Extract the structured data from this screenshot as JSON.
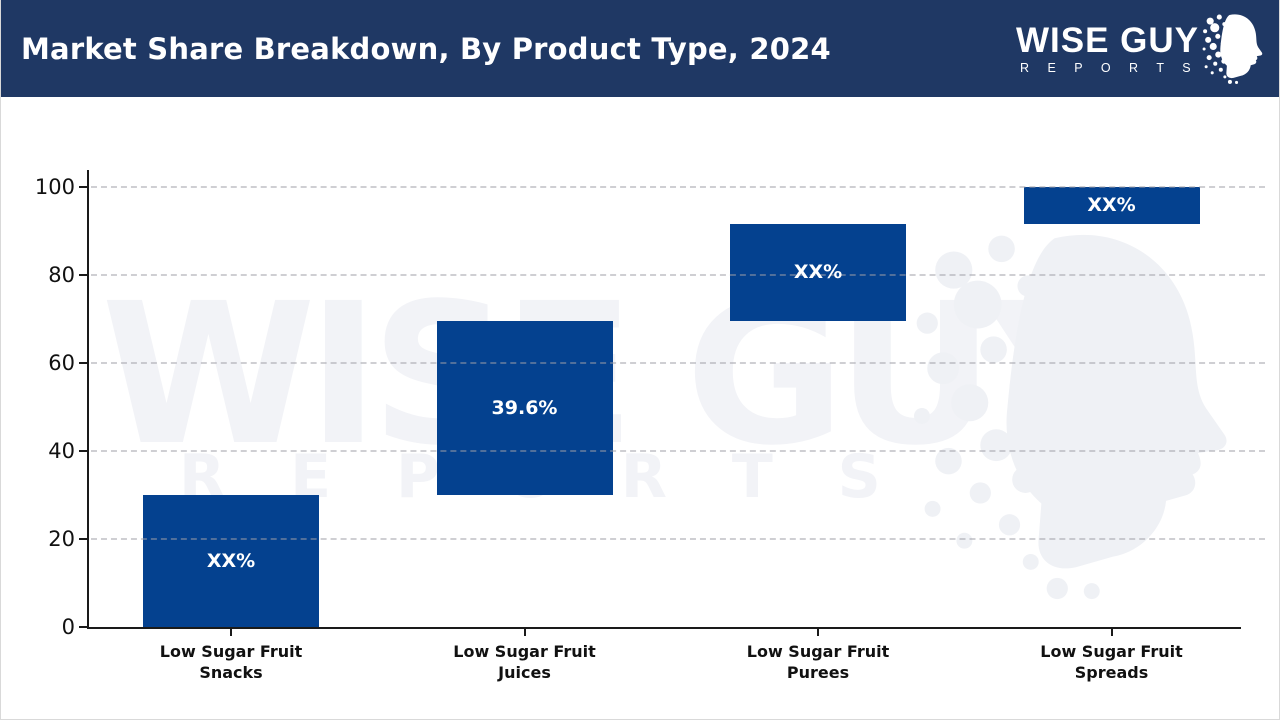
{
  "page": {
    "bg_color": "#ffffff",
    "border_color": "#d9d9d9"
  },
  "header": {
    "bg_color": "#1f3864",
    "title": "Market Share Breakdown, By Product Type, 2024",
    "logo": {
      "wordmark": "WISE GUY",
      "subtitle": "R E P O R T S"
    }
  },
  "watermark": {
    "wordmark": "WISE GUY",
    "subtitle": "R E P O R T S",
    "color": "#f2f3f7"
  },
  "chart_data": {
    "type": "bar",
    "subtype": "floating-segment-waterfall",
    "title": "Market Share Breakdown, By Product Type, 2024",
    "categories": [
      "Low Sugar Fruit\nSnacks",
      "Low Sugar Fruit\nJuices",
      "Low Sugar Fruit\nPurees",
      "Low Sugar Fruit\nSpreads"
    ],
    "segments": [
      {
        "category": "Low Sugar Fruit Snacks",
        "start": 0,
        "end": 30,
        "value_label": "XX%"
      },
      {
        "category": "Low Sugar Fruit Juices",
        "start": 30,
        "end": 69.6,
        "value_label": "39.6%"
      },
      {
        "category": "Low Sugar Fruit Purees",
        "start": 69.6,
        "end": 91.6,
        "value_label": "XX%"
      },
      {
        "category": "Low Sugar Fruit Spreads",
        "start": 91.6,
        "end": 100,
        "value_label": "XX%"
      }
    ],
    "xlabel": "",
    "ylabel": "",
    "ylim": [
      0,
      100
    ],
    "yticks": [
      0,
      20,
      40,
      60,
      80,
      100
    ],
    "bar_color": "#04418f",
    "value_label_color": "#ffffff",
    "axis_color": "#1a1a1a",
    "gridline": {
      "axis": "y",
      "style": "dashed",
      "color": "#d4d4d6",
      "drawn_over_bars": true
    },
    "legend": false
  }
}
